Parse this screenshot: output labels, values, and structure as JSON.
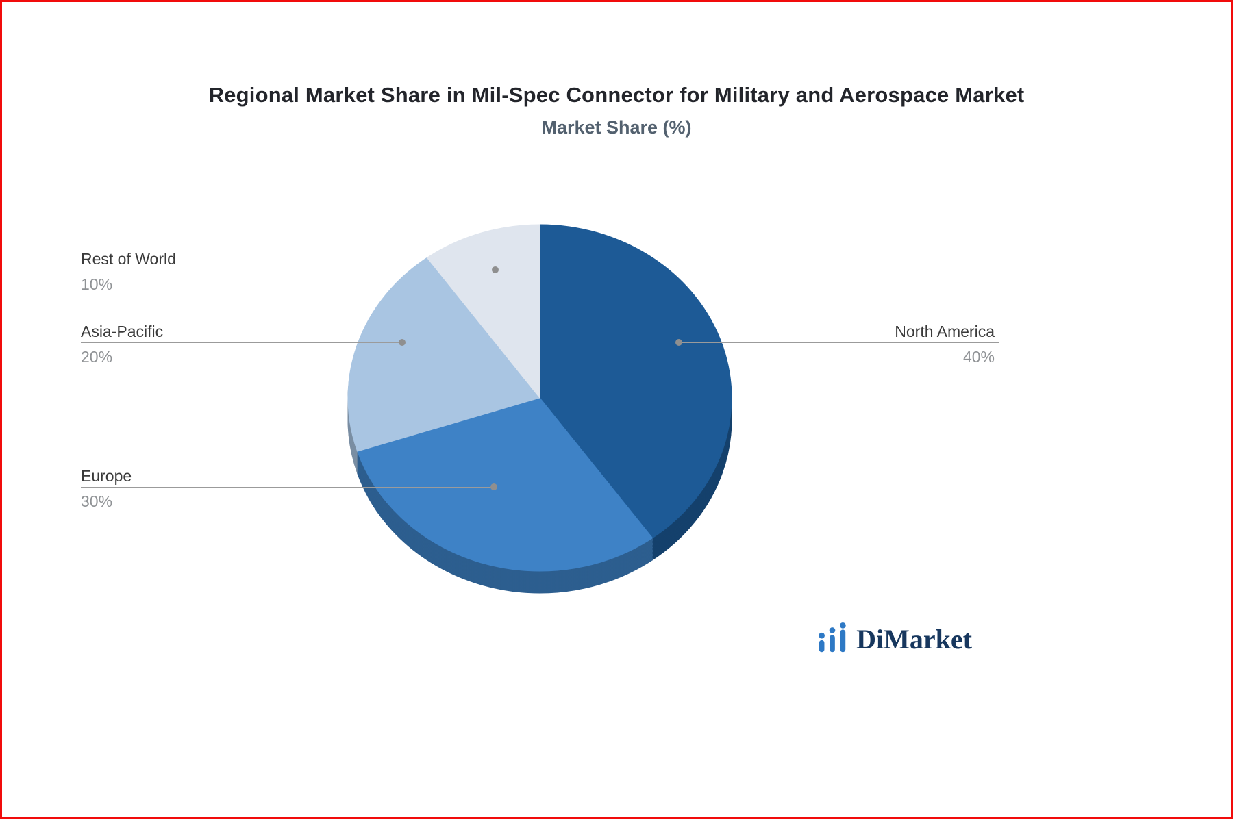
{
  "page": {
    "title": "Regional Market Share in Mil-Spec Connector for Military and Aerospace Market",
    "subtitle": "Market Share (%)"
  },
  "chart_data": {
    "type": "pie",
    "title": "Regional Market Share in Mil-Spec Connector for Military and Aerospace Market",
    "subtitle": "Market Share (%)",
    "unit": "%",
    "start_angle_deg": 0,
    "direction": "clockwise",
    "style": "3d-pie",
    "slices": [
      {
        "label": "North America",
        "value": 40,
        "color": "#1d5a96"
      },
      {
        "label": "Europe",
        "value": 30,
        "color": "#3e82c6"
      },
      {
        "label": "Asia-Pacific",
        "value": 20,
        "color": "#a9c5e2"
      },
      {
        "label": "Rest of World",
        "value": 10,
        "color": "#dfe5ee"
      }
    ],
    "callouts": [
      {
        "label": "Rest of World",
        "value_text": "10%"
      },
      {
        "label": "Asia-Pacific",
        "value_text": "20%"
      },
      {
        "label": "Europe",
        "value_text": "30%"
      },
      {
        "label": "North America",
        "value_text": "40%"
      }
    ]
  },
  "branding": {
    "logo_text": "DiMarket",
    "logo_icon": "bar-chart-logo-icon"
  }
}
